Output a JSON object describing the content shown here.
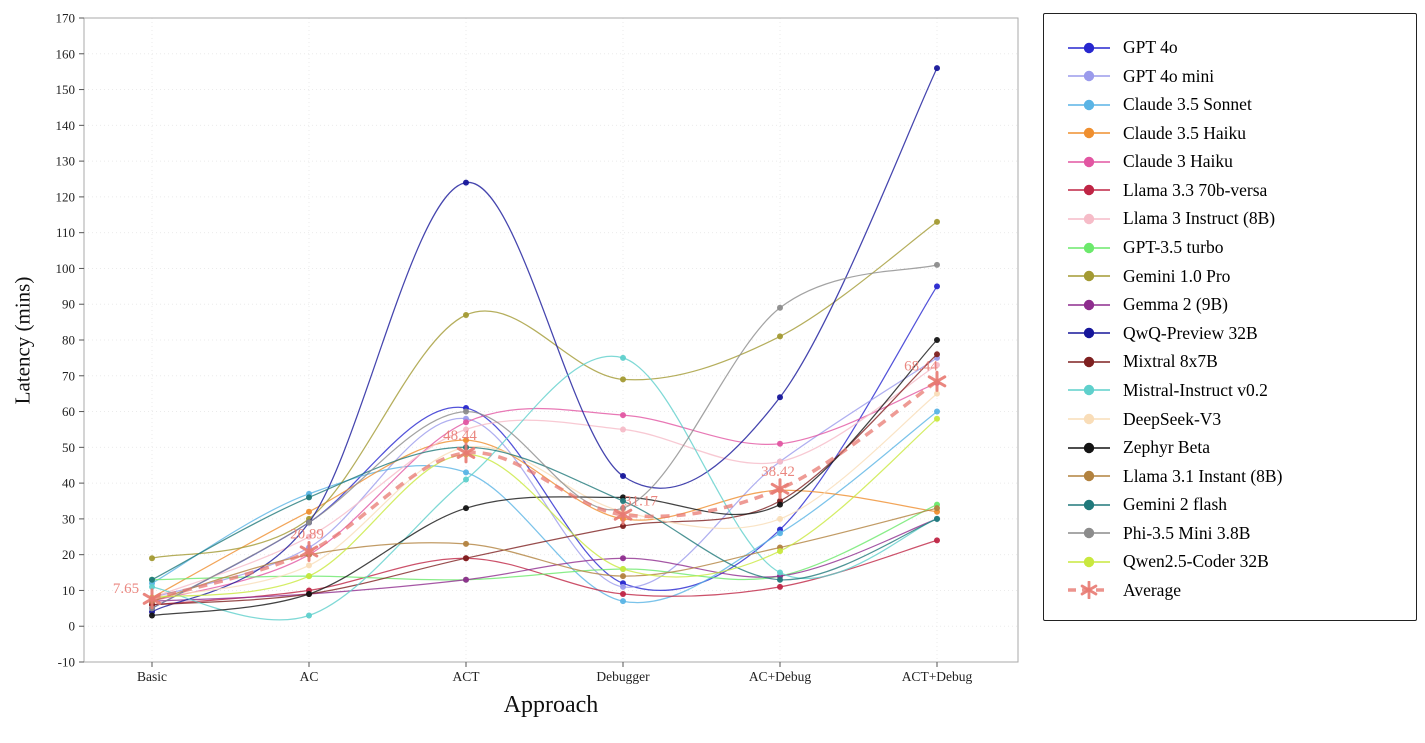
{
  "chart_data": {
    "type": "line",
    "title": "",
    "xlabel": "Approach",
    "ylabel": "Latency (mins)",
    "categories": [
      "Basic",
      "AC",
      "ACT",
      "Debugger",
      "AC+Debug",
      "ACT+Debug"
    ],
    "ylim": [
      -10,
      170
    ],
    "ytick_step": 10,
    "grid": true,
    "legend_position": "right",
    "series": [
      {
        "name": "GPT 4o",
        "color": "#2727cf",
        "values": [
          5,
          29,
          61,
          12,
          27,
          95
        ]
      },
      {
        "name": "GPT 4o mini",
        "color": "#9b9bec",
        "values": [
          8,
          22,
          58,
          11,
          46,
          75
        ]
      },
      {
        "name": "Claude 3.5 Sonnet",
        "color": "#5ab4e5",
        "values": [
          12,
          37,
          43,
          7,
          26,
          60
        ]
      },
      {
        "name": "Claude 3.5 Haiku",
        "color": "#ef8f2f",
        "values": [
          8,
          32,
          52,
          30,
          38,
          32
        ]
      },
      {
        "name": "Claude 3 Haiku",
        "color": "#e256a2",
        "values": [
          7,
          20,
          57,
          59,
          51,
          68
        ]
      },
      {
        "name": "Llama 3.3 70b-versa",
        "color": "#bf2545",
        "values": [
          6,
          10,
          19,
          9,
          11,
          24
        ]
      },
      {
        "name": "Llama 3 Instruct (8B)",
        "color": "#f6bcc8",
        "values": [
          8,
          25,
          55,
          55,
          46,
          73
        ]
      },
      {
        "name": "GPT-3.5 turbo",
        "color": "#6ce96c",
        "values": [
          13,
          14,
          13,
          16,
          14,
          34
        ]
      },
      {
        "name": "Gemini 1.0 Pro",
        "color": "#a39a33",
        "values": [
          19,
          30,
          87,
          69,
          81,
          113
        ]
      },
      {
        "name": "Gemma 2 (9B)",
        "color": "#8e2d8e",
        "values": [
          7,
          9,
          13,
          19,
          14,
          30
        ]
      },
      {
        "name": "QwQ-Preview 32B",
        "color": "#16169a",
        "values": [
          4,
          29,
          124,
          42,
          64,
          156
        ]
      },
      {
        "name": "Mixtral 8x7B",
        "color": "#7e2020",
        "values": [
          6,
          9,
          19,
          28,
          35,
          76
        ]
      },
      {
        "name": "Mistral-Instruct v0.2",
        "color": "#5fd0cc",
        "values": [
          11,
          3,
          41,
          75,
          15,
          30
        ]
      },
      {
        "name": "DeepSeek-V3",
        "color": "#f9ddb8",
        "values": [
          8,
          17,
          50,
          32,
          30,
          65
        ]
      },
      {
        "name": "Zephyr Beta",
        "color": "#141414",
        "values": [
          3,
          9,
          33,
          36,
          34,
          80
        ]
      },
      {
        "name": "Llama 3.1 Instant (8B)",
        "color": "#b2823f",
        "values": [
          7,
          20,
          23,
          14,
          22,
          33
        ]
      },
      {
        "name": "Gemini 2 flash",
        "color": "#20797b",
        "values": [
          13,
          36,
          50,
          35,
          13,
          30
        ]
      },
      {
        "name": "Phi-3.5 Mini 3.8B",
        "color": "#8c8c8c",
        "values": [
          5,
          29,
          60,
          33,
          89,
          101
        ]
      },
      {
        "name": "Qwen2.5-Coder 32B",
        "color": "#c9e83e",
        "values": [
          8,
          14,
          48,
          16,
          21,
          58
        ]
      }
    ],
    "average": {
      "name": "Average",
      "color": "#e87a72",
      "values": [
        7.65,
        20.89,
        48.44,
        31.17,
        38.42,
        68.44
      ],
      "point_labels": [
        "7.65",
        "20.89",
        "48.44",
        "31.17",
        "38.42",
        "68.44"
      ]
    }
  }
}
